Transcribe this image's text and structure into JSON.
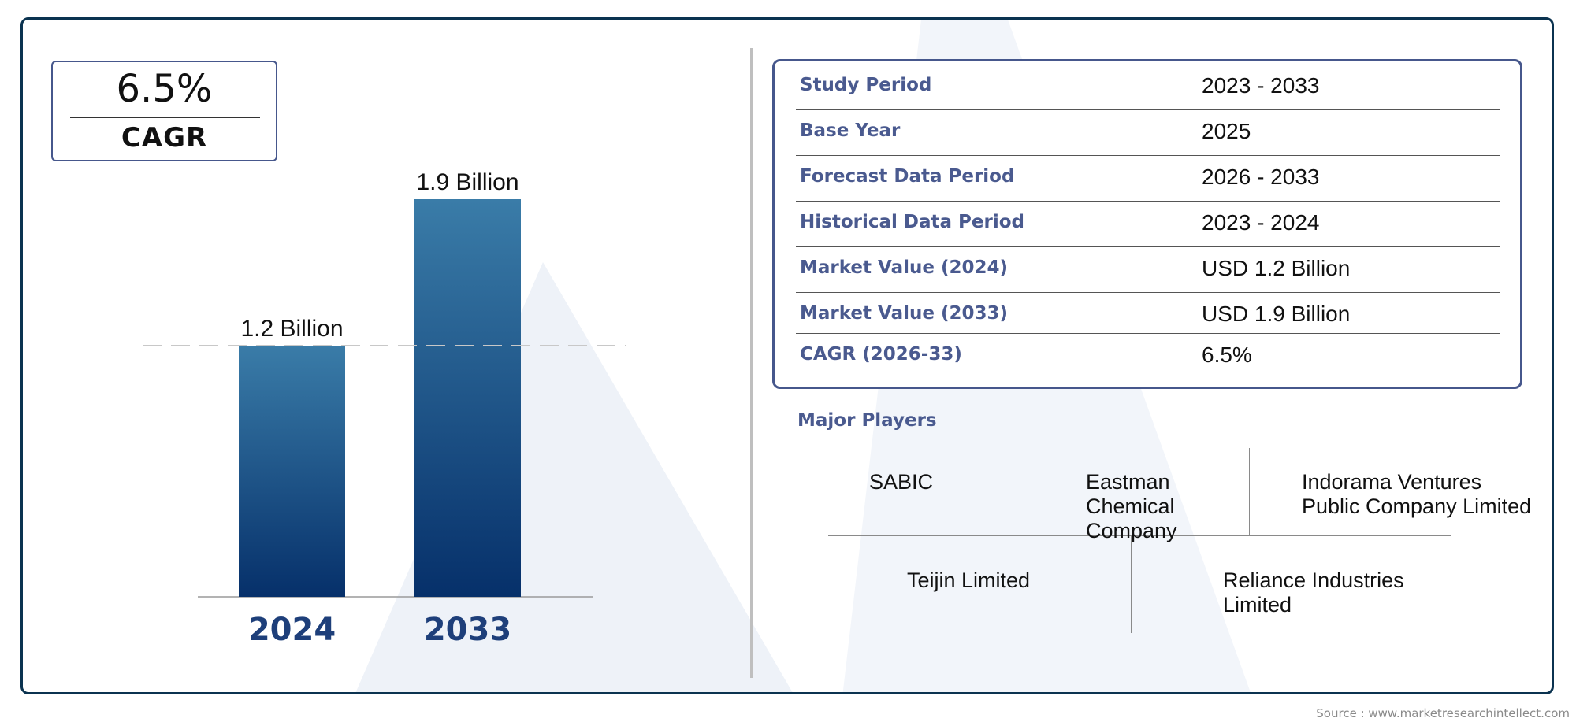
{
  "cagr_card": {
    "value": "6.5%",
    "label": "CAGR"
  },
  "chart_data": {
    "type": "bar",
    "categories": [
      "2024",
      "2033"
    ],
    "values": [
      1.2,
      1.9
    ],
    "value_labels": [
      "1.2 Billion",
      "1.9 Billion"
    ],
    "reference_line": "dashed line at 2024 value",
    "bar_color_top": "#3a7ca8",
    "bar_color_bottom": "#06306a",
    "category_label_color": "#1e3f7a"
  },
  "info_table": [
    {
      "label": "Study Period",
      "value": "2023 - 2033"
    },
    {
      "label": "Base Year",
      "value": "2025"
    },
    {
      "label": "Forecast Data Period",
      "value": "2026 - 2033"
    },
    {
      "label": "Historical Data Period",
      "value": "2023 - 2024"
    },
    {
      "label": "Market Value (2024)",
      "value": "USD 1.2 Billion"
    },
    {
      "label": "Market Value (2033)",
      "value": "USD 1.9 Billion"
    },
    {
      "label": "CAGR (2026-33)",
      "value": "6.5%"
    }
  ],
  "players": {
    "heading": "Major Players",
    "items": [
      "SABIC",
      "Eastman\nChemical\nCompany",
      "Indorama Ventures\nPublic Company Limited",
      "Teijin Limited",
      "Reliance Industries\nLimited"
    ]
  },
  "source": "Source : www.marketresearchintellect.com",
  "colors": {
    "frame": "#0b3350",
    "accent": "#46578c",
    "label_text": "#4a5a8f",
    "watermark": "#f1f4f9"
  }
}
